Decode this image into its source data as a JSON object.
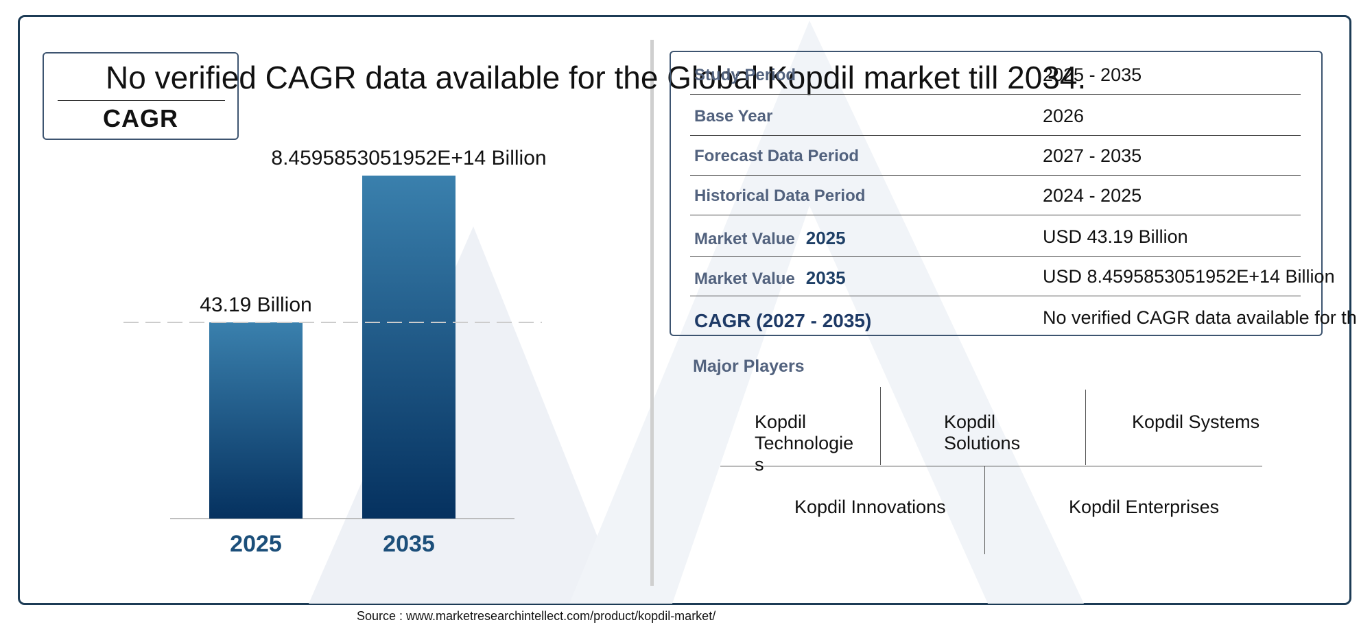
{
  "headline": "No verified CAGR data available for the Global Kopdil market till 2034.",
  "cagr_label": "CAGR",
  "chart_data": {
    "type": "bar",
    "categories": [
      "2025",
      "2035"
    ],
    "value_labels": [
      "43.19 Billion",
      "8.4595853051952E+14 Billion"
    ],
    "values": [
      43.19,
      845958530519520
    ],
    "colors": {
      "bar_top": "#3a80ad",
      "bar_bottom": "#05315f",
      "category_text": "#1c4f7a"
    }
  },
  "table": {
    "rows": [
      {
        "key": "Study Period",
        "year": "",
        "value": "2025 - 2035"
      },
      {
        "key": "Base Year",
        "year": "",
        "value": "2026"
      },
      {
        "key": "Forecast Data Period",
        "year": "",
        "value": "2027 - 2035"
      },
      {
        "key": "Historical Data Period",
        "year": "",
        "value": "2024 - 2025"
      },
      {
        "key": "Market Value",
        "year": "2025",
        "value": "USD 43.19 Billion"
      },
      {
        "key": "Market Value",
        "year": "2035",
        "value": "USD 8.4595853051952E+14 Billion"
      },
      {
        "key": "CAGR (2027 - 2035)",
        "year": "",
        "value": "No verified CAGR data available for th"
      }
    ]
  },
  "players": {
    "title": "Major Players",
    "items": [
      "Kopdil Technologie s",
      "Kopdil Solutions",
      "Kopdil Systems",
      "Kopdil Innovations",
      "Kopdil Enterprises"
    ]
  },
  "source": "Source : www.marketresearchintellect.com/product/kopdil-market/"
}
